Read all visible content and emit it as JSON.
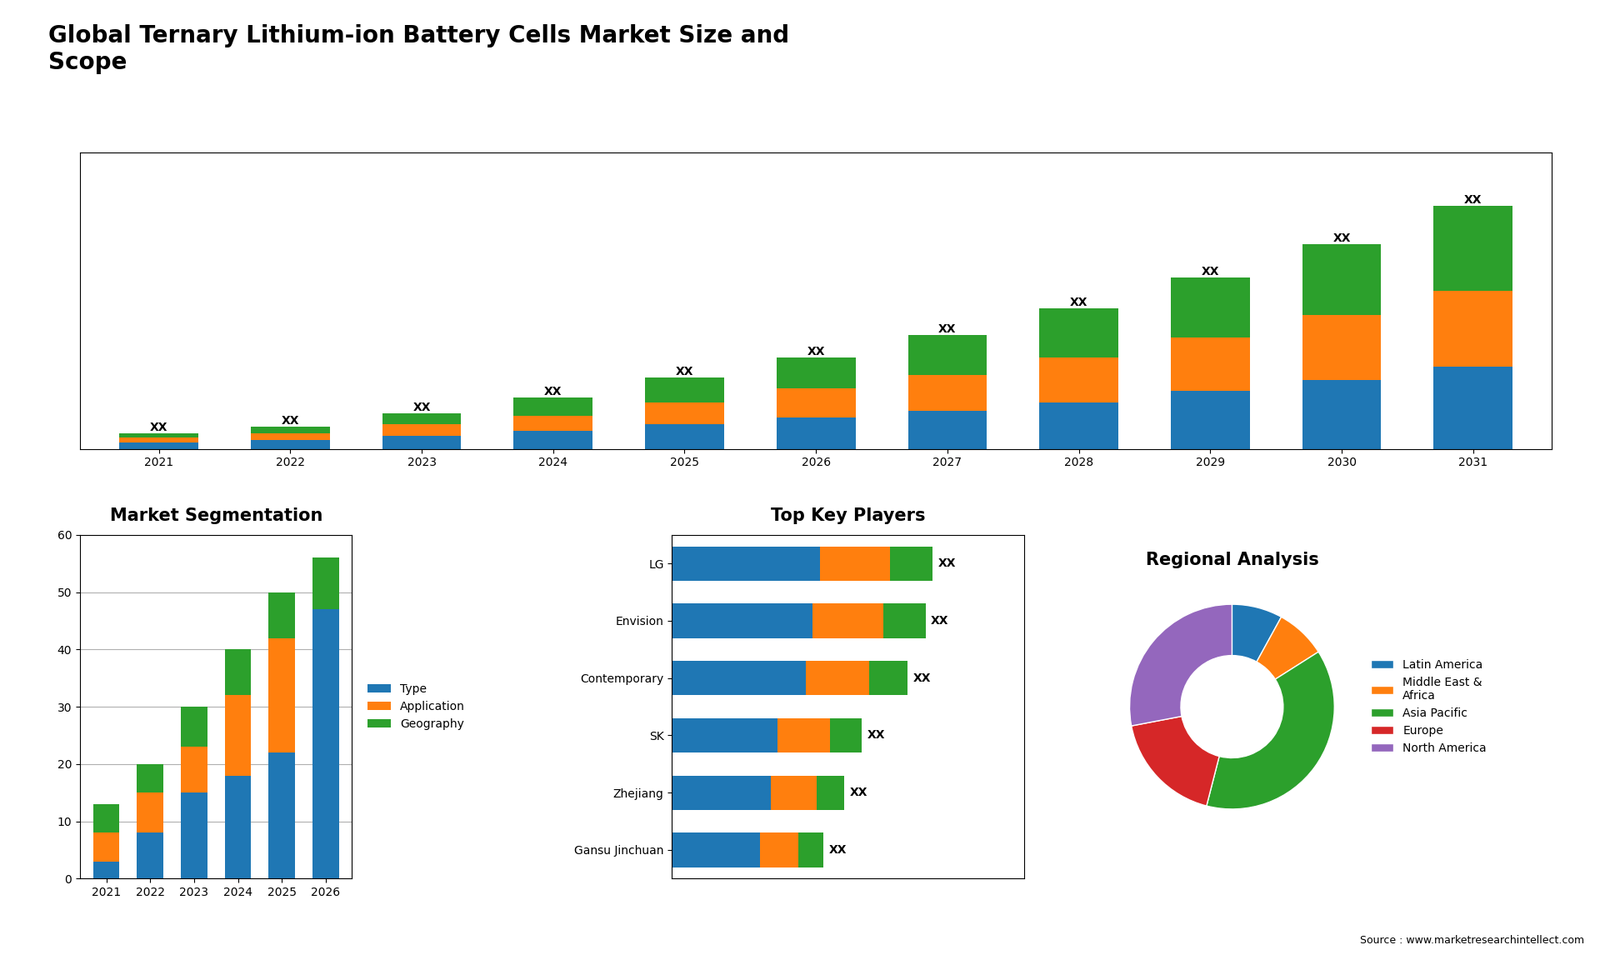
{
  "title": "Global Ternary Lithium-ion Battery Cells Market Size and\nScope",
  "annotations": [
    "Source : www.marketresearchintellect.com"
  ],
  "chart_data": [
    {
      "type": "bar",
      "stacked": true,
      "categories": [
        "2021",
        "2022",
        "2023",
        "2024",
        "2025",
        "2026",
        "2027",
        "2028",
        "2029",
        "2030",
        "2031"
      ],
      "series": [
        {
          "values": [
            3,
            4,
            6,
            8,
            11,
            14,
            17,
            21,
            26,
            31,
            37
          ]
        },
        {
          "values": [
            2,
            3,
            5,
            7,
            10,
            13,
            16,
            20,
            24,
            29,
            34
          ]
        },
        {
          "values": [
            2,
            3,
            5,
            8,
            11,
            14,
            18,
            22,
            27,
            32,
            38
          ],
          "value_labels": [
            "XX",
            "XX",
            "XX",
            "XX",
            "XX",
            "XX",
            "XX",
            "XX",
            "XX",
            "XX",
            "XX"
          ]
        }
      ],
      "data_labels": true,
      "ylim": [
        0,
        132.98
      ],
      "tick_labels": "x",
      "grid": false
    },
    {
      "type": "bar",
      "title": "Market Segmentation",
      "stacked": true,
      "categories": [
        "2021",
        "2022",
        "2023",
        "2024",
        "2025",
        "2026"
      ],
      "series": [
        {
          "name": "Type",
          "values": [
            3,
            8,
            15,
            18,
            22,
            47
          ]
        },
        {
          "name": "Application",
          "values": [
            5,
            7,
            8,
            14,
            20,
            0
          ]
        },
        {
          "name": "Geography",
          "values": [
            5,
            5,
            7,
            8,
            8,
            9
          ]
        }
      ],
      "ylim": [
        0,
        60
      ],
      "yticks": [
        0,
        10,
        20,
        30,
        40,
        50,
        60
      ],
      "grid": true,
      "legend": "center left"
    },
    {
      "type": "bar",
      "title": "Top Key Players",
      "orientation": "horizontal",
      "stacked": true,
      "categories": [
        "LG",
        "Envision",
        "Contemporary",
        "SK",
        "Zhejiang",
        "Gansu Jinchuan"
      ],
      "series": [
        {
          "values": [
            0.42,
            0.4,
            0.38,
            0.3,
            0.28,
            0.25
          ]
        },
        {
          "values": [
            0.2,
            0.2,
            0.18,
            0.15,
            0.13,
            0.11
          ]
        },
        {
          "values": [
            0.12,
            0.12,
            0.11,
            0.09,
            0.08,
            0.07
          ],
          "value_labels": [
            "XX",
            "XX",
            "XX",
            "XX",
            "XX",
            "XX"
          ]
        }
      ],
      "data_labels": true,
      "xlim": [
        0,
        1
      ],
      "tick_labels": "y",
      "grid": false
    },
    {
      "type": "pie",
      "title": "Regional Analysis",
      "categories": [
        "Latin America",
        "Middle East &\nAfrica",
        "Asia Pacific",
        "Europe",
        "North America"
      ],
      "values": [
        8,
        8,
        38,
        18,
        28
      ],
      "legend": "center left"
    }
  ]
}
